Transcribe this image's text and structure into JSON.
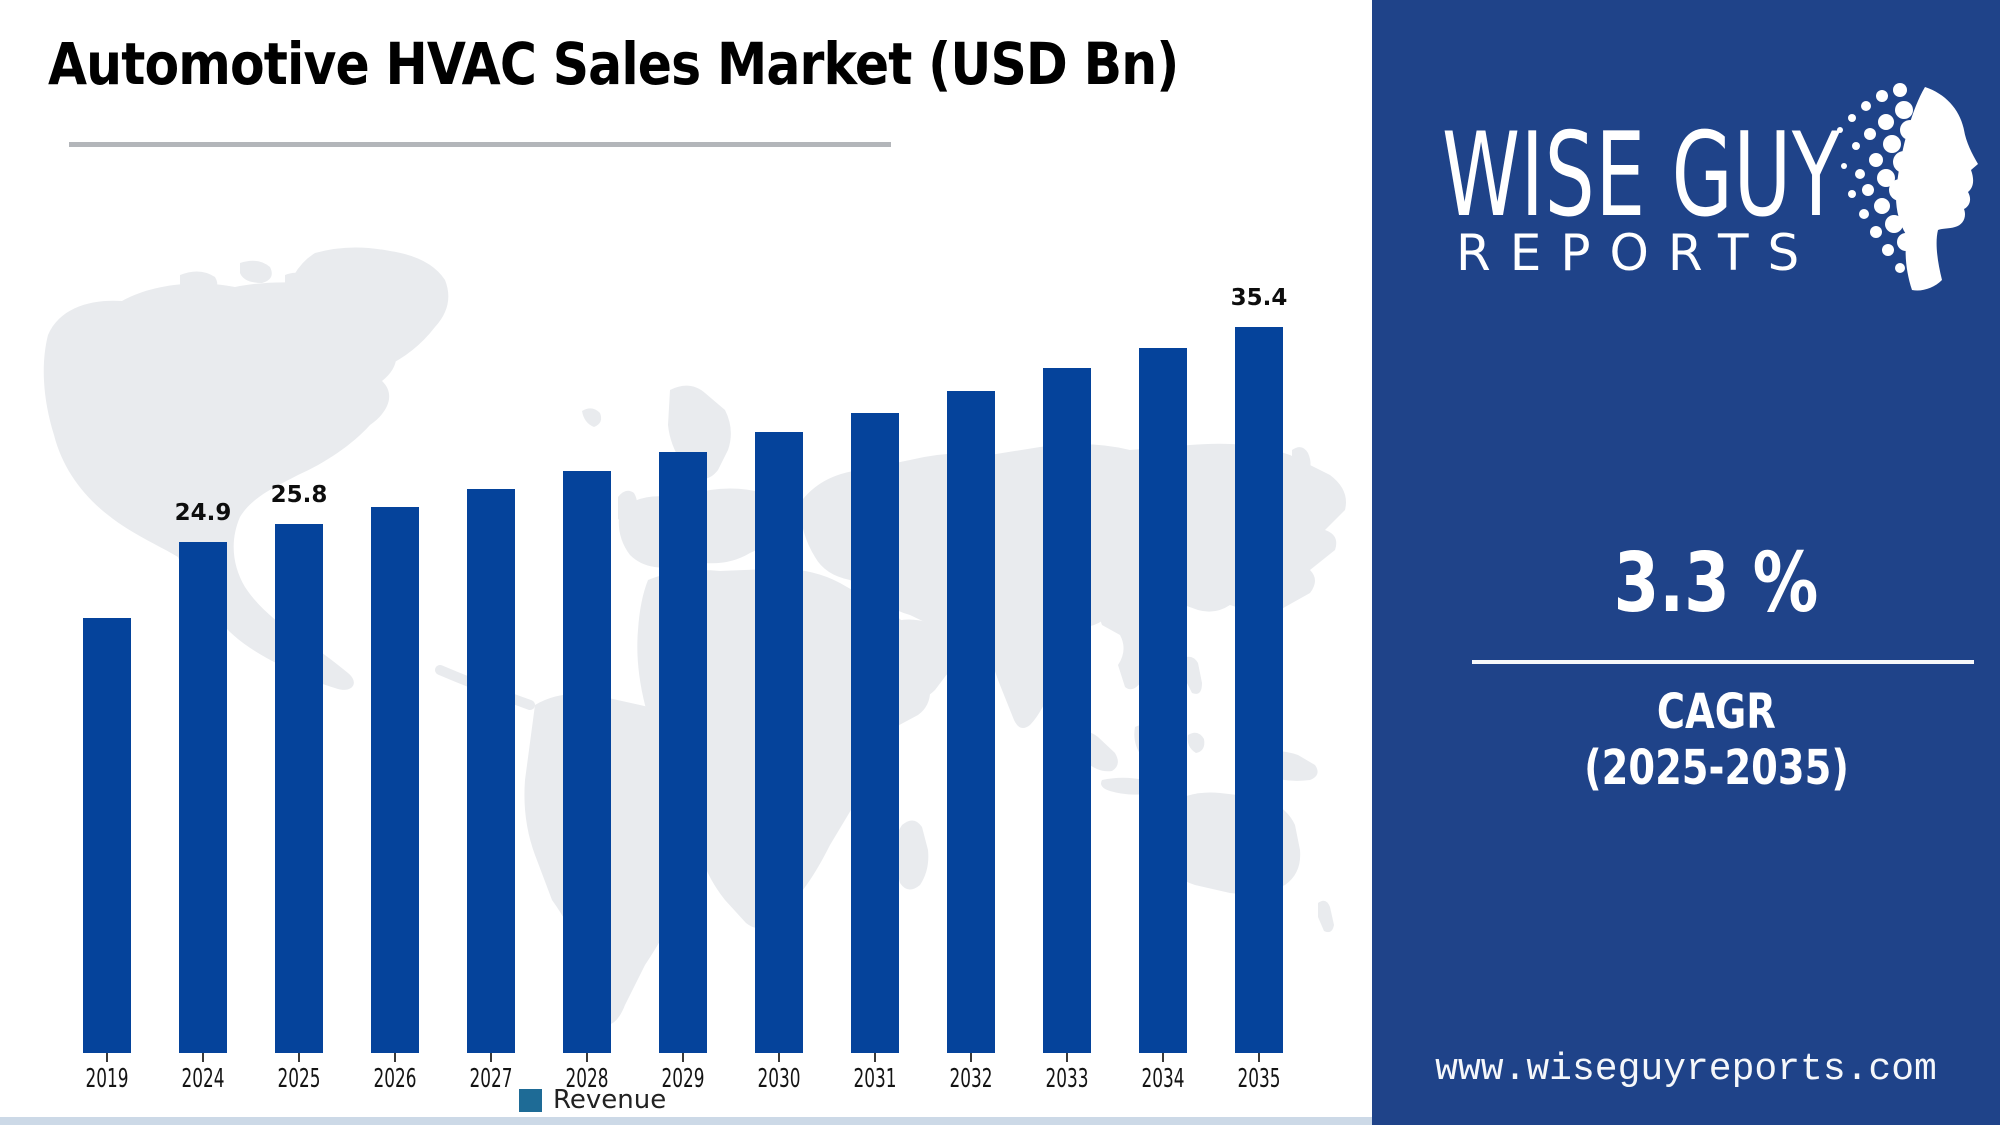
{
  "page_title": "Automotive HVAC Sales Market (USD Bn)",
  "chart_data": {
    "type": "bar",
    "title": "Automotive HVAC Sales Market (USD Bn)",
    "categories": [
      "2019",
      "2024",
      "2025",
      "2026",
      "2027",
      "2028",
      "2029",
      "2030",
      "2031",
      "2032",
      "2033",
      "2034",
      "2035"
    ],
    "values": [
      21.2,
      24.9,
      25.8,
      26.6,
      27.5,
      28.4,
      29.3,
      30.3,
      31.2,
      32.3,
      33.4,
      34.4,
      35.4
    ],
    "point_labels": [
      "",
      "24.9",
      "25.8",
      "",
      "",
      "",
      "",
      "",
      "",
      "",
      "",
      "",
      "35.4"
    ],
    "xlabel": "",
    "ylabel": "",
    "ylim": [
      0,
      38
    ],
    "grid": false,
    "legend": {
      "entries": [
        "Revenue"
      ],
      "position": "bottom"
    },
    "bar_color": "#05439b",
    "legend_swatch_color": "#1e6b96"
  },
  "legend_label": "Revenue",
  "side_panel": {
    "logo_line1": "WISE GUY",
    "logo_line2": "REPORTS",
    "cagr_value": "3.3 %",
    "cagr_label": "CAGR",
    "cagr_range": "(2025-2035)",
    "website": "www.wiseguyreports.com"
  },
  "colors": {
    "bar": "#05439b",
    "panel_bg": "#1f4389",
    "map_fill": "#e9ebee",
    "legend_swatch": "#1e6b96",
    "title_underline": "#b3b6ba",
    "bottom_strip": "#ccd9e7",
    "title_text": "#000000"
  }
}
